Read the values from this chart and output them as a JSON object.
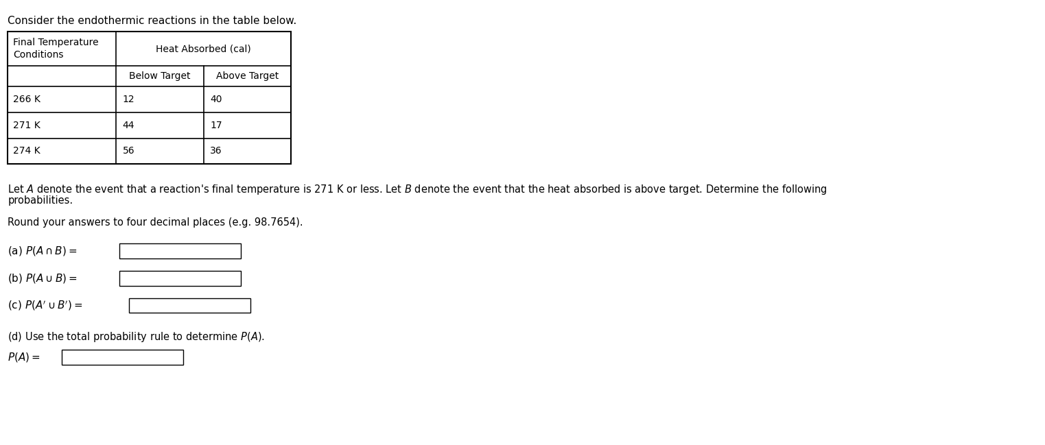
{
  "title": "Consider the endothermic reactions in the table below.",
  "table": {
    "col1_header": "Final Temperature\nConditions",
    "col2_header": "Heat Absorbed (cal)",
    "col2_sub1": "Below Target",
    "col2_sub2": "Above Target",
    "rows": [
      {
        "temp": "266 K",
        "below": "12",
        "above": "40"
      },
      {
        "temp": "271 K",
        "below": "44",
        "above": "17"
      },
      {
        "temp": "274 K",
        "below": "56",
        "above": "36"
      }
    ]
  },
  "paragraph": "Let $A$ denote the event that a reaction's final temperature is 271 K or less. Let $B$ denote the event that the heat absorbed is above target. Determine the following\nprobabilities.",
  "round_note": "Round your answers to four decimal places (e.g. 98.7654).",
  "questions": [
    {
      "label": "(a) $P(A \\cap B) =$",
      "box": true
    },
    {
      "label": "(b) $P(A \\cup B) =$",
      "box": true
    },
    {
      "label": "(c) $P(A' \\cup B') =$",
      "box": true
    }
  ],
  "part_d_label": "(d) Use the total probability rule to determine $P(A)$.",
  "part_d_answer_label": "$P(A) =$",
  "text_color": "#000000",
  "highlight_color": "#cc0000",
  "table_border_color": "#000000",
  "background_color": "#ffffff",
  "box_color": "#d3d3d3",
  "input_box_color": "#ffffff"
}
